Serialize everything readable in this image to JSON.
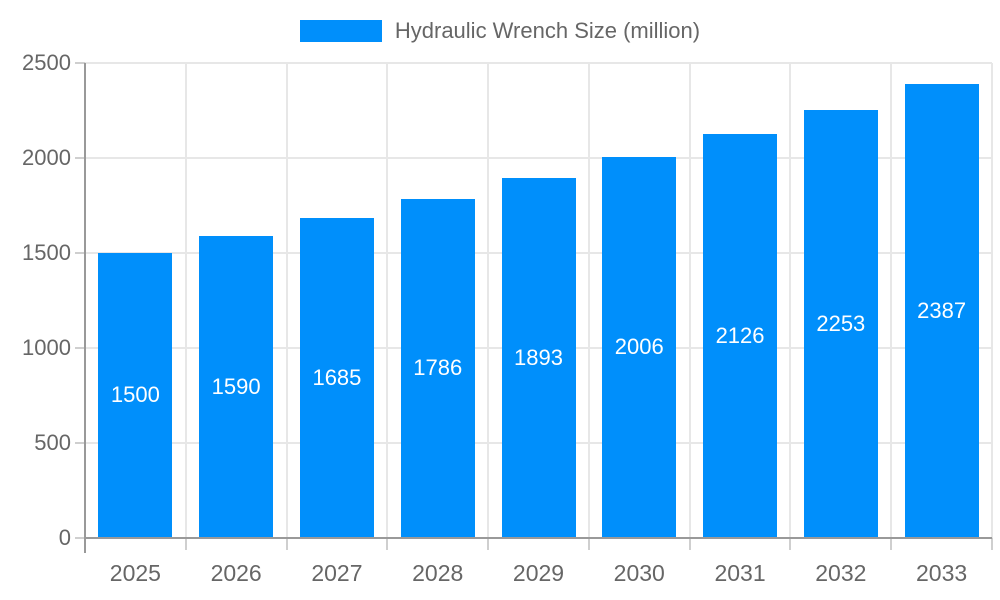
{
  "legend": {
    "label": "Hydraulic Wrench Size (million)"
  },
  "chart_data": {
    "type": "bar",
    "title": "Hydraulic Wrench Size (million)",
    "series": [
      {
        "name": "Hydraulic Wrench Size (million)",
        "values": [
          1500,
          1590,
          1685,
          1786,
          1893,
          2006,
          2126,
          2253,
          2387
        ]
      }
    ],
    "categories": [
      "2025",
      "2026",
      "2027",
      "2028",
      "2029",
      "2030",
      "2031",
      "2032",
      "2033"
    ],
    "value_labels": [
      "1500",
      "1590",
      "1685",
      "1786",
      "1893",
      "2006",
      "2126",
      "2253",
      "2387"
    ],
    "xlabel": "",
    "ylabel": "",
    "ylim": [
      0,
      2500
    ],
    "y_ticks": [
      0,
      500,
      1000,
      1500,
      2000,
      2500
    ],
    "y_tick_labels": [
      "0",
      "500",
      "1000",
      "1500",
      "2000",
      "2500"
    ],
    "grid": true,
    "legend_position": "top-center",
    "colors": {
      "bar": "#008FFB",
      "grid": "#e7e7e7",
      "tick": "#cfcfcf",
      "axis": "#999999",
      "text": "#666666",
      "value_label": "#ffffff"
    }
  }
}
